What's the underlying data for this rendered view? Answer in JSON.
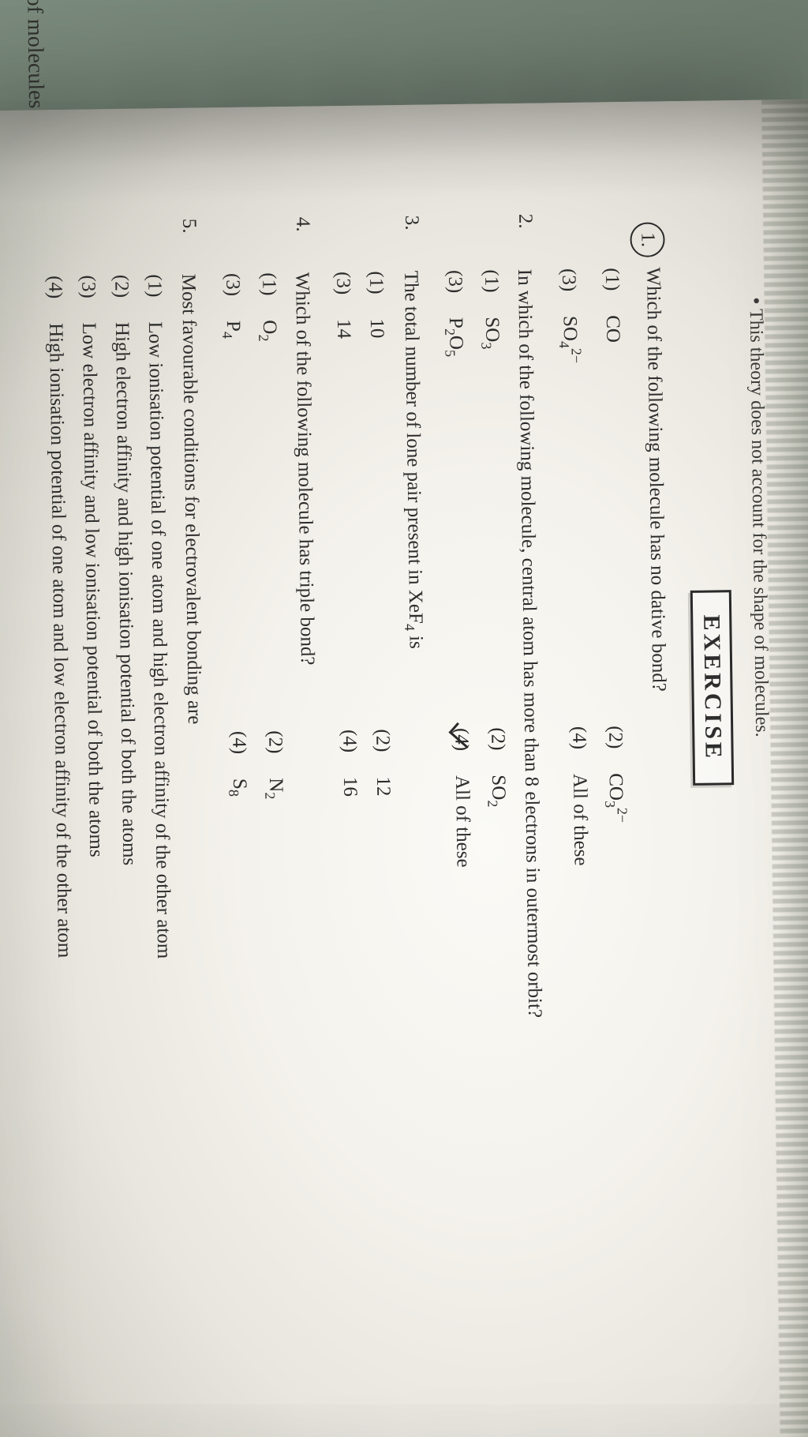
{
  "page": {
    "top_note": "This theory does not account for the shape of molecules.",
    "exercise_heading": "EXERCISE",
    "side_label": "of molecules",
    "colors": {
      "paper_light": "#fbfaf6",
      "paper_mid": "#e8e6de",
      "paper_dark": "#b9bab1",
      "text": "#2d2d2d",
      "backdrop": "#6a736b"
    },
    "typography": {
      "body_fontsize_pt": 18,
      "heading_fontsize_pt": 22,
      "font_family": "Times New Roman"
    }
  },
  "questions": [
    {
      "num_display": "1.",
      "circled": true,
      "text": "Which of the following molecule has no dative bond?",
      "layout": "two-col",
      "options": [
        {
          "mk": "(1)",
          "html": "CO"
        },
        {
          "mk": "(2)",
          "html": "CO<sub>3</sub><sup>2−</sup>"
        },
        {
          "mk": "(3)",
          "html": "SO<sub>4</sub><sup>2−</sup>"
        },
        {
          "mk": "(4)",
          "html": "All of these"
        }
      ]
    },
    {
      "num_display": "2.",
      "circled": false,
      "text": "In which of the following molecule, central atom has more than 8 electrons in outermost orbit?",
      "layout": "two-col",
      "options": [
        {
          "mk": "(1)",
          "html": "SO<sub>3</sub>"
        },
        {
          "mk": "(2)",
          "html": "SO<sub>2</sub>"
        },
        {
          "mk": "(3)",
          "html": "P<sub>2</sub>O<sub>5</sub>"
        },
        {
          "mk": "(4)",
          "html": "All of these",
          "tick": true
        }
      ]
    },
    {
      "num_display": "3.",
      "circled": false,
      "text": "The total number of lone pair present in XeF<sub>4</sub> is",
      "layout": "two-col",
      "options": [
        {
          "mk": "(1)",
          "html": "10"
        },
        {
          "mk": "(2)",
          "html": "12"
        },
        {
          "mk": "(3)",
          "html": "14"
        },
        {
          "mk": "(4)",
          "html": "16"
        }
      ]
    },
    {
      "num_display": "4.",
      "circled": false,
      "text": "Which of the following molecule has triple bond?",
      "layout": "two-col",
      "options": [
        {
          "mk": "(1)",
          "html": "O<sub>2</sub>"
        },
        {
          "mk": "(2)",
          "html": "N<sub>2</sub>"
        },
        {
          "mk": "(3)",
          "html": "P<sub>4</sub>"
        },
        {
          "mk": "(4)",
          "html": "S<sub>8</sub>"
        }
      ]
    },
    {
      "num_display": "5.",
      "circled": false,
      "text": "Most favourable conditions for electrovalent bonding are",
      "layout": "one-col",
      "options": [
        {
          "mk": "(1)",
          "html": "Low ionisation potential of one atom and high electron affinity of the other atom"
        },
        {
          "mk": "(2)",
          "html": "High electron affinity and high ionisation potential of both the atoms"
        },
        {
          "mk": "(3)",
          "html": "Low electron affinity and low ionisation potential of both the atoms"
        },
        {
          "mk": "(4)",
          "html": "High ionisation potential of one atom and low electron affinity of the other atom"
        }
      ]
    }
  ]
}
